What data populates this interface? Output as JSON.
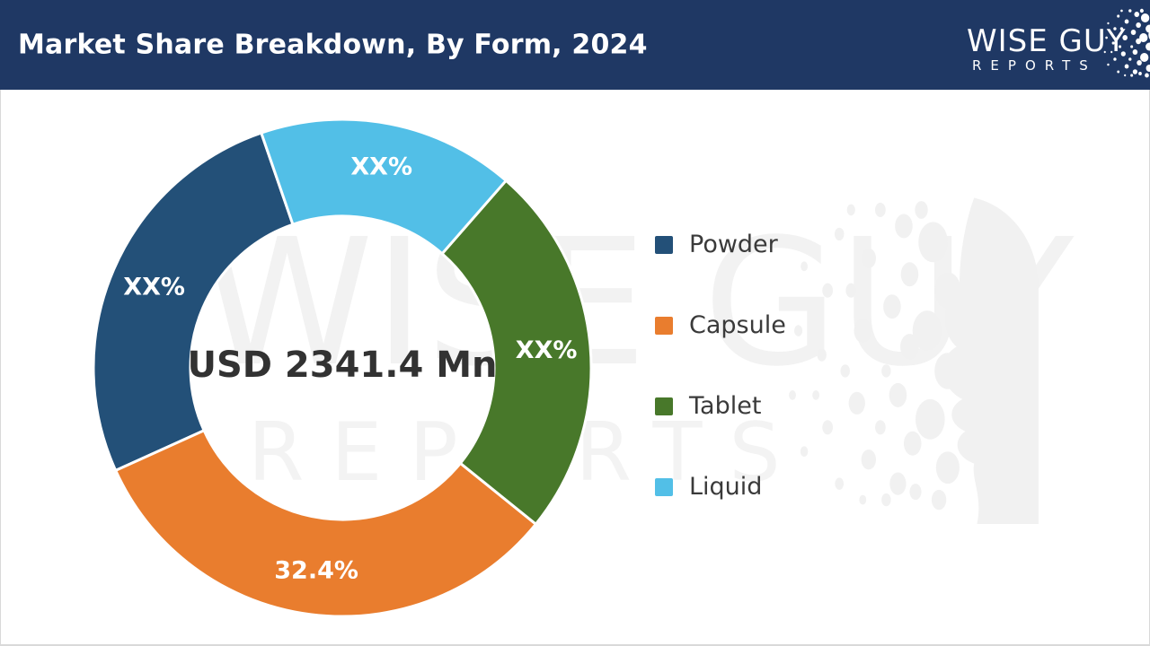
{
  "header": {
    "title": "Market Share Breakdown, By Form, 2024",
    "logo": {
      "name": "WISE GUY",
      "sub": "REPORTS"
    }
  },
  "watermark": {
    "line1": "WISE GUY",
    "line2": "REPORTS"
  },
  "chart_data": {
    "type": "donut",
    "title": "Market Share Breakdown, By Form, 2024",
    "center_label": "USD 2341.4 Mn",
    "value_unit": "percent",
    "series": [
      {
        "name": "Powder",
        "value": 26.5,
        "label": "XX%",
        "color": "#235078"
      },
      {
        "name": "Capsule",
        "value": 32.4,
        "label": "32.4%",
        "color": "#e97d2e"
      },
      {
        "name": "Tablet",
        "value": 24.4,
        "label": "XX%",
        "color": "#48782a"
      },
      {
        "name": "Liquid",
        "value": 16.7,
        "label": "XX%",
        "color": "#52bfe7"
      }
    ],
    "start_angle_deg": 109,
    "sweep": "counterclockwise",
    "inner_radius_ratio": 0.61,
    "legend_position": "right"
  }
}
